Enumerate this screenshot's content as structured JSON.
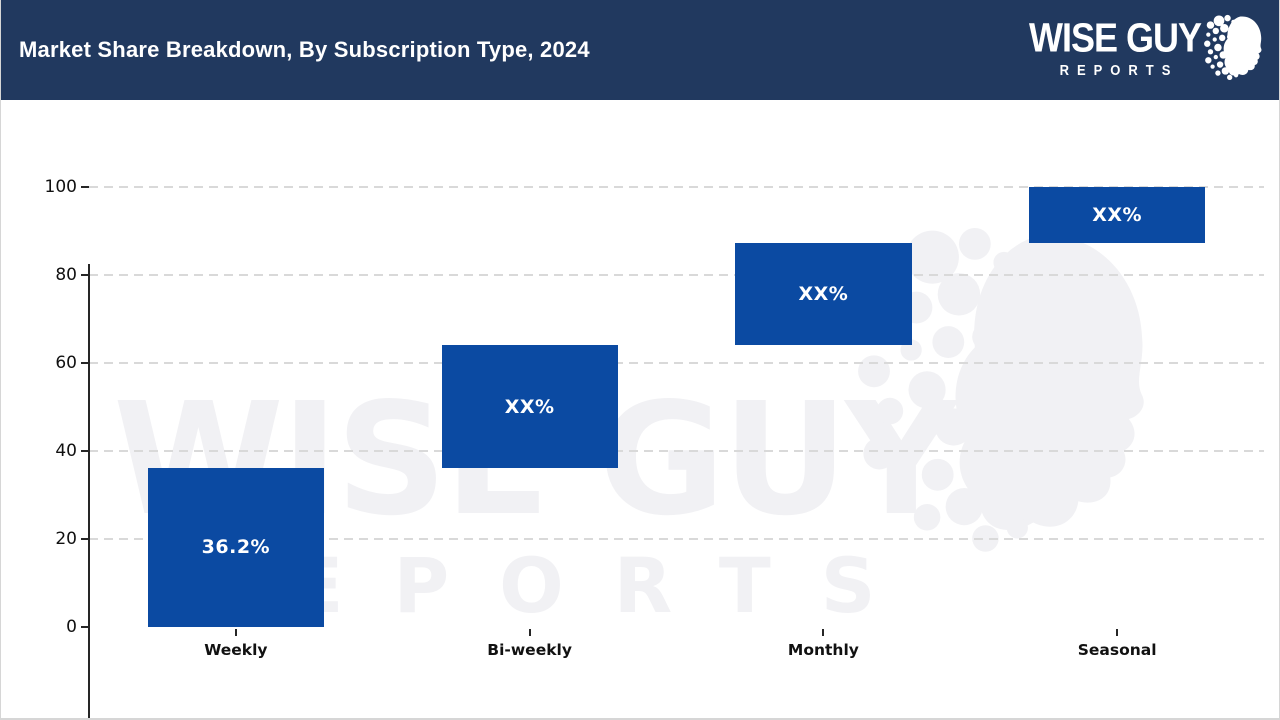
{
  "header": {
    "title": "Market Share Breakdown, By Subscription Type, 2024",
    "logo": {
      "line1": "WISE GUY",
      "line2": "REPORTS"
    }
  },
  "watermark": {
    "line1": "WISE GUY",
    "line2": "REPORTS"
  },
  "colors": {
    "header_bg": "#21395f",
    "bar": "#0b4aa2",
    "axis": "#262626",
    "gridline": "#d9d9d9",
    "watermark": "#f1f1f4",
    "label_on_bar": "#ffffff"
  },
  "chart_data": {
    "type": "bar",
    "subtype": "waterfall",
    "title": "Market Share Breakdown, By Subscription Type, 2024",
    "xlabel": "",
    "ylabel": "",
    "categories": [
      "Weekly",
      "Bi-weekly",
      "Monthly",
      "Seasonal"
    ],
    "segments": [
      {
        "category": "Weekly",
        "start": 0,
        "end": 36.2,
        "label": "36.2%"
      },
      {
        "category": "Bi-weekly",
        "start": 36.2,
        "end": 64.0,
        "label": "XX%"
      },
      {
        "category": "Monthly",
        "start": 64.0,
        "end": 87.2,
        "label": "XX%"
      },
      {
        "category": "Seasonal",
        "start": 87.2,
        "end": 100.0,
        "label": "XX%"
      }
    ],
    "yticks": [
      0,
      20,
      40,
      60,
      80,
      100
    ],
    "ylim": [
      0,
      105
    ],
    "grid": "horizontal-dashed",
    "legend": "none"
  }
}
